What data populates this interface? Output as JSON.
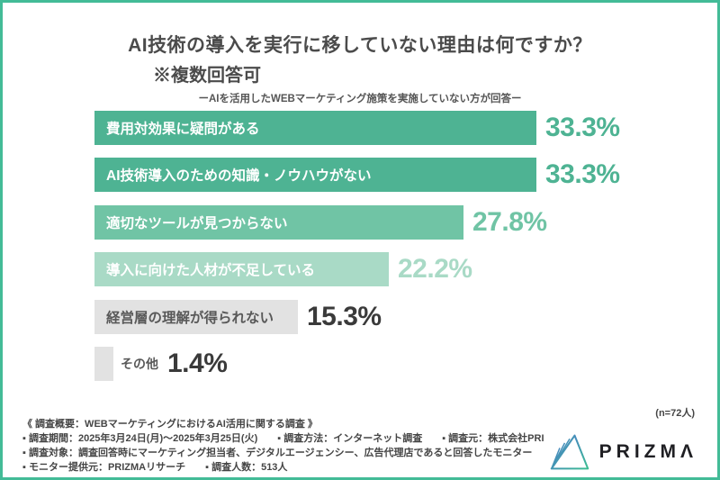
{
  "page": {
    "background": "#ffffff",
    "border_color": "#43bb97"
  },
  "header": {
    "title": "AI技術の導入を実行に移していない理由は何ですか？",
    "subtitle": "※複数回答可",
    "note": "ーAIを活用したWEBマーケティング施策を実施していない方が回答ー"
  },
  "chart_data": {
    "type": "bar",
    "orientation": "horizontal",
    "title": "AI技術の導入を実行に移していない理由は何ですか？",
    "subtitle": "※複数回答可",
    "note": "ーAIを活用したWEBマーケティング施策を実施していない方が回答ー",
    "unit": "%",
    "axis": "hidden",
    "n_label": "(n=72人)",
    "categories": [
      "費用対効果に疑問がある",
      "AI技術導入のための知識・ノウハウがない",
      "適切なツールが見つからない",
      "導入に向けた人材が不足している",
      "経営層の理解が得られない",
      "その他"
    ],
    "values": [
      33.3,
      33.3,
      27.8,
      22.2,
      15.3,
      1.4
    ],
    "value_labels": [
      "33.3%",
      "33.3%",
      "27.8%",
      "22.2%",
      "15.3%",
      "1.4%"
    ],
    "bars": [
      {
        "label": "費用対効果に疑問がある",
        "value": 33.3,
        "value_label": "33.3%",
        "color": "#4eb393",
        "label_color": "#ffffff",
        "value_color": "#4eb393",
        "label_position": "inside"
      },
      {
        "label": "AI技術導入のための知識・ノウハウがない",
        "value": 33.3,
        "value_label": "33.3%",
        "color": "#4eb393",
        "label_color": "#ffffff",
        "value_color": "#4eb393",
        "label_position": "inside"
      },
      {
        "label": "適切なツールが見つからない",
        "value": 27.8,
        "value_label": "27.8%",
        "color": "#70c4a5",
        "label_color": "#ffffff",
        "value_color": "#70c4a5",
        "label_position": "inside"
      },
      {
        "label": "導入に向けた人材が不足している",
        "value": 22.2,
        "value_label": "22.2%",
        "color": "#a9dac6",
        "label_color": "#ffffff",
        "value_color": "#a9dac6",
        "label_position": "inside"
      },
      {
        "label": "経営層の理解が得られない",
        "value": 15.3,
        "value_label": "15.3%",
        "color": "#e2e2e2",
        "label_color": "#595959",
        "value_color": "#3a3a3a",
        "label_position": "inside"
      },
      {
        "label": "その他",
        "value": 1.4,
        "value_label": "1.4%",
        "color": "#e2e2e2",
        "label_color": "#595959",
        "value_color": "#3a3a3a",
        "label_position": "outside"
      }
    ]
  },
  "footer": {
    "n_label": "(n=72人)",
    "lines": [
      "《 調査概要：WEBマーケティングにおけるAI活用に関する調査 》",
      "▪ 調査期間：2025年3月24日(月)～2025年3月25日(火)　　▪ 調査方法：インターネット調査　　▪ 調査元：株式会社PRIZMA",
      "▪ 調査対象：調査回答時にマーケティング担当者、デジタルエージェンシー、広告代理店であると回答したモニター",
      "▪ モニター提供元：PRIZMAリサーチ　　▪ 調査人数：513人"
    ],
    "logo_text": "PRIZMΛ"
  }
}
